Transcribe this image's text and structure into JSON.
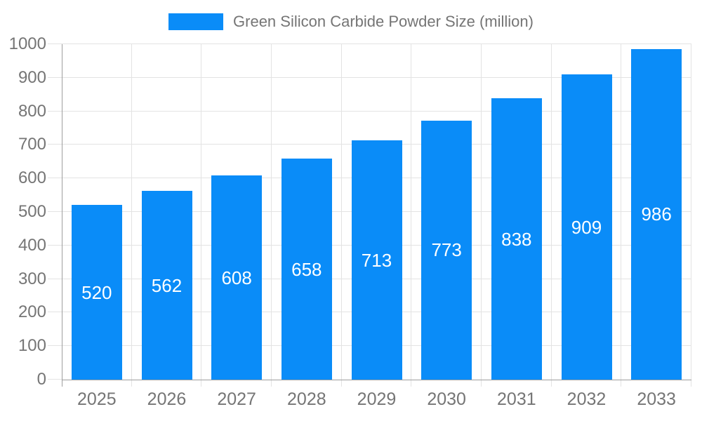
{
  "legend": {
    "label": "Green Silicon Carbide Powder Size (million)"
  },
  "colors": {
    "bar": "#0a8cf8",
    "grid": "#e3e3e3",
    "axis": "#9e9e9e",
    "text": "#757575",
    "value_label": "#ffffff",
    "background": "#ffffff"
  },
  "chart_data": {
    "type": "bar",
    "title": "Green Silicon Carbide Powder Size (million)",
    "categories": [
      "2025",
      "2026",
      "2027",
      "2028",
      "2029",
      "2030",
      "2031",
      "2032",
      "2033"
    ],
    "values": [
      520,
      562,
      608,
      658,
      713,
      773,
      838,
      909,
      986
    ],
    "series": [
      {
        "name": "Green Silicon Carbide Powder Size (million)",
        "values": [
          520,
          562,
          608,
          658,
          713,
          773,
          838,
          909,
          986
        ]
      }
    ],
    "xlabel": "",
    "ylabel": "",
    "ylim": [
      0,
      1000
    ],
    "ytick_step": 100,
    "grid": true,
    "legend_position": "top",
    "value_labels": "inside-center"
  }
}
